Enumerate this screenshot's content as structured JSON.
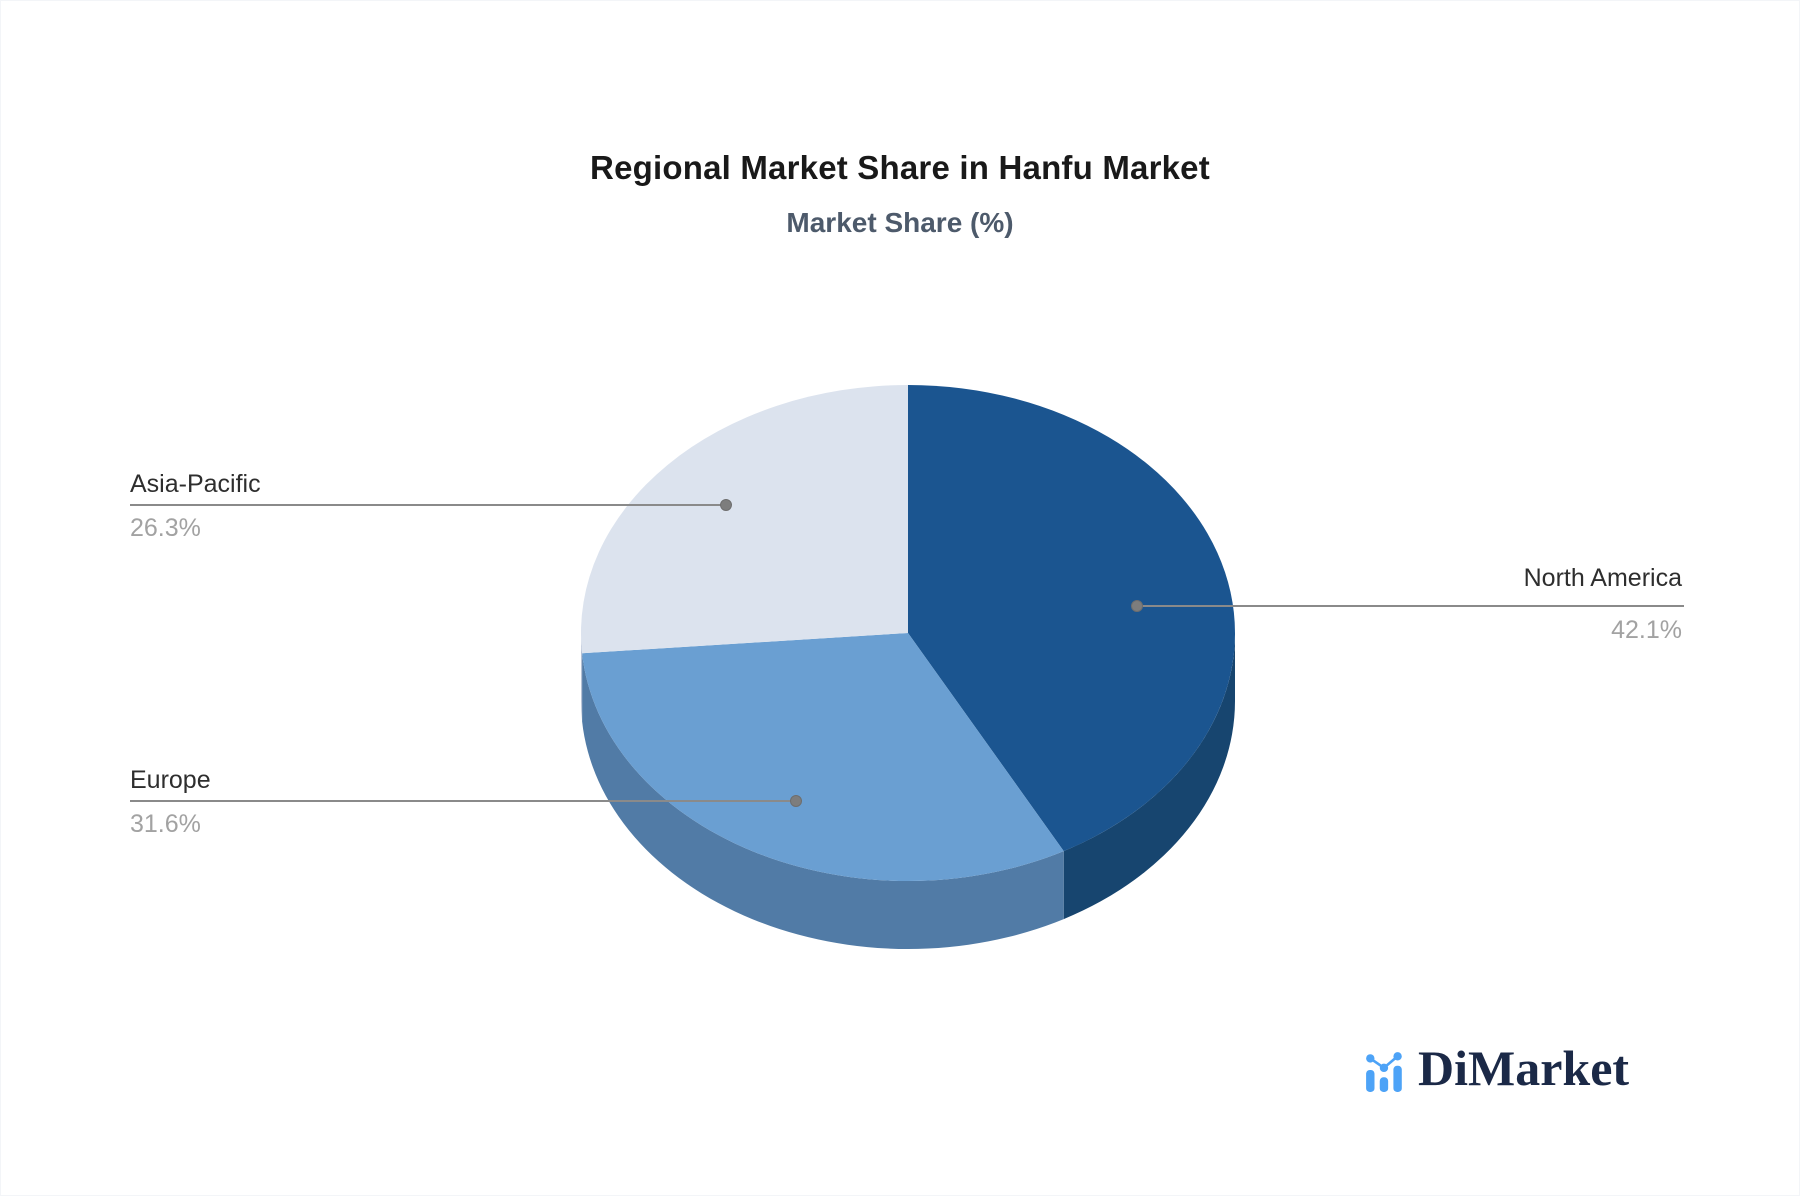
{
  "title": "Regional Market Share in Hanfu Market",
  "subtitle": "Market Share (%)",
  "chart_data": {
    "type": "pie",
    "style": "3d",
    "title": "Regional Market Share in Hanfu Market",
    "subtitle": "Market Share (%)",
    "unit": "%",
    "labels": [
      "North America",
      "Europe",
      "Asia-Pacific"
    ],
    "values": [
      42.1,
      31.6,
      26.3
    ],
    "value_labels": [
      "42.1%",
      "31.6%",
      "26.3%"
    ],
    "colors": [
      "#1B5590",
      "#6A9FD2",
      "#DCE3EE"
    ],
    "side_colors": [
      "#17456F",
      "#517BA6",
      "#B7C2D5"
    ],
    "start_angle_deg": -90,
    "direction": "clockwise",
    "legend_position": "none",
    "leader_line_color": "#8a8a8a",
    "leader_dot_color": "#7d7d7d"
  },
  "logo": {
    "text": "DiMarket",
    "icon": "bar-chart-trend-icon",
    "icon_color": "#4DA3F7",
    "text_color": "#1B2947"
  }
}
